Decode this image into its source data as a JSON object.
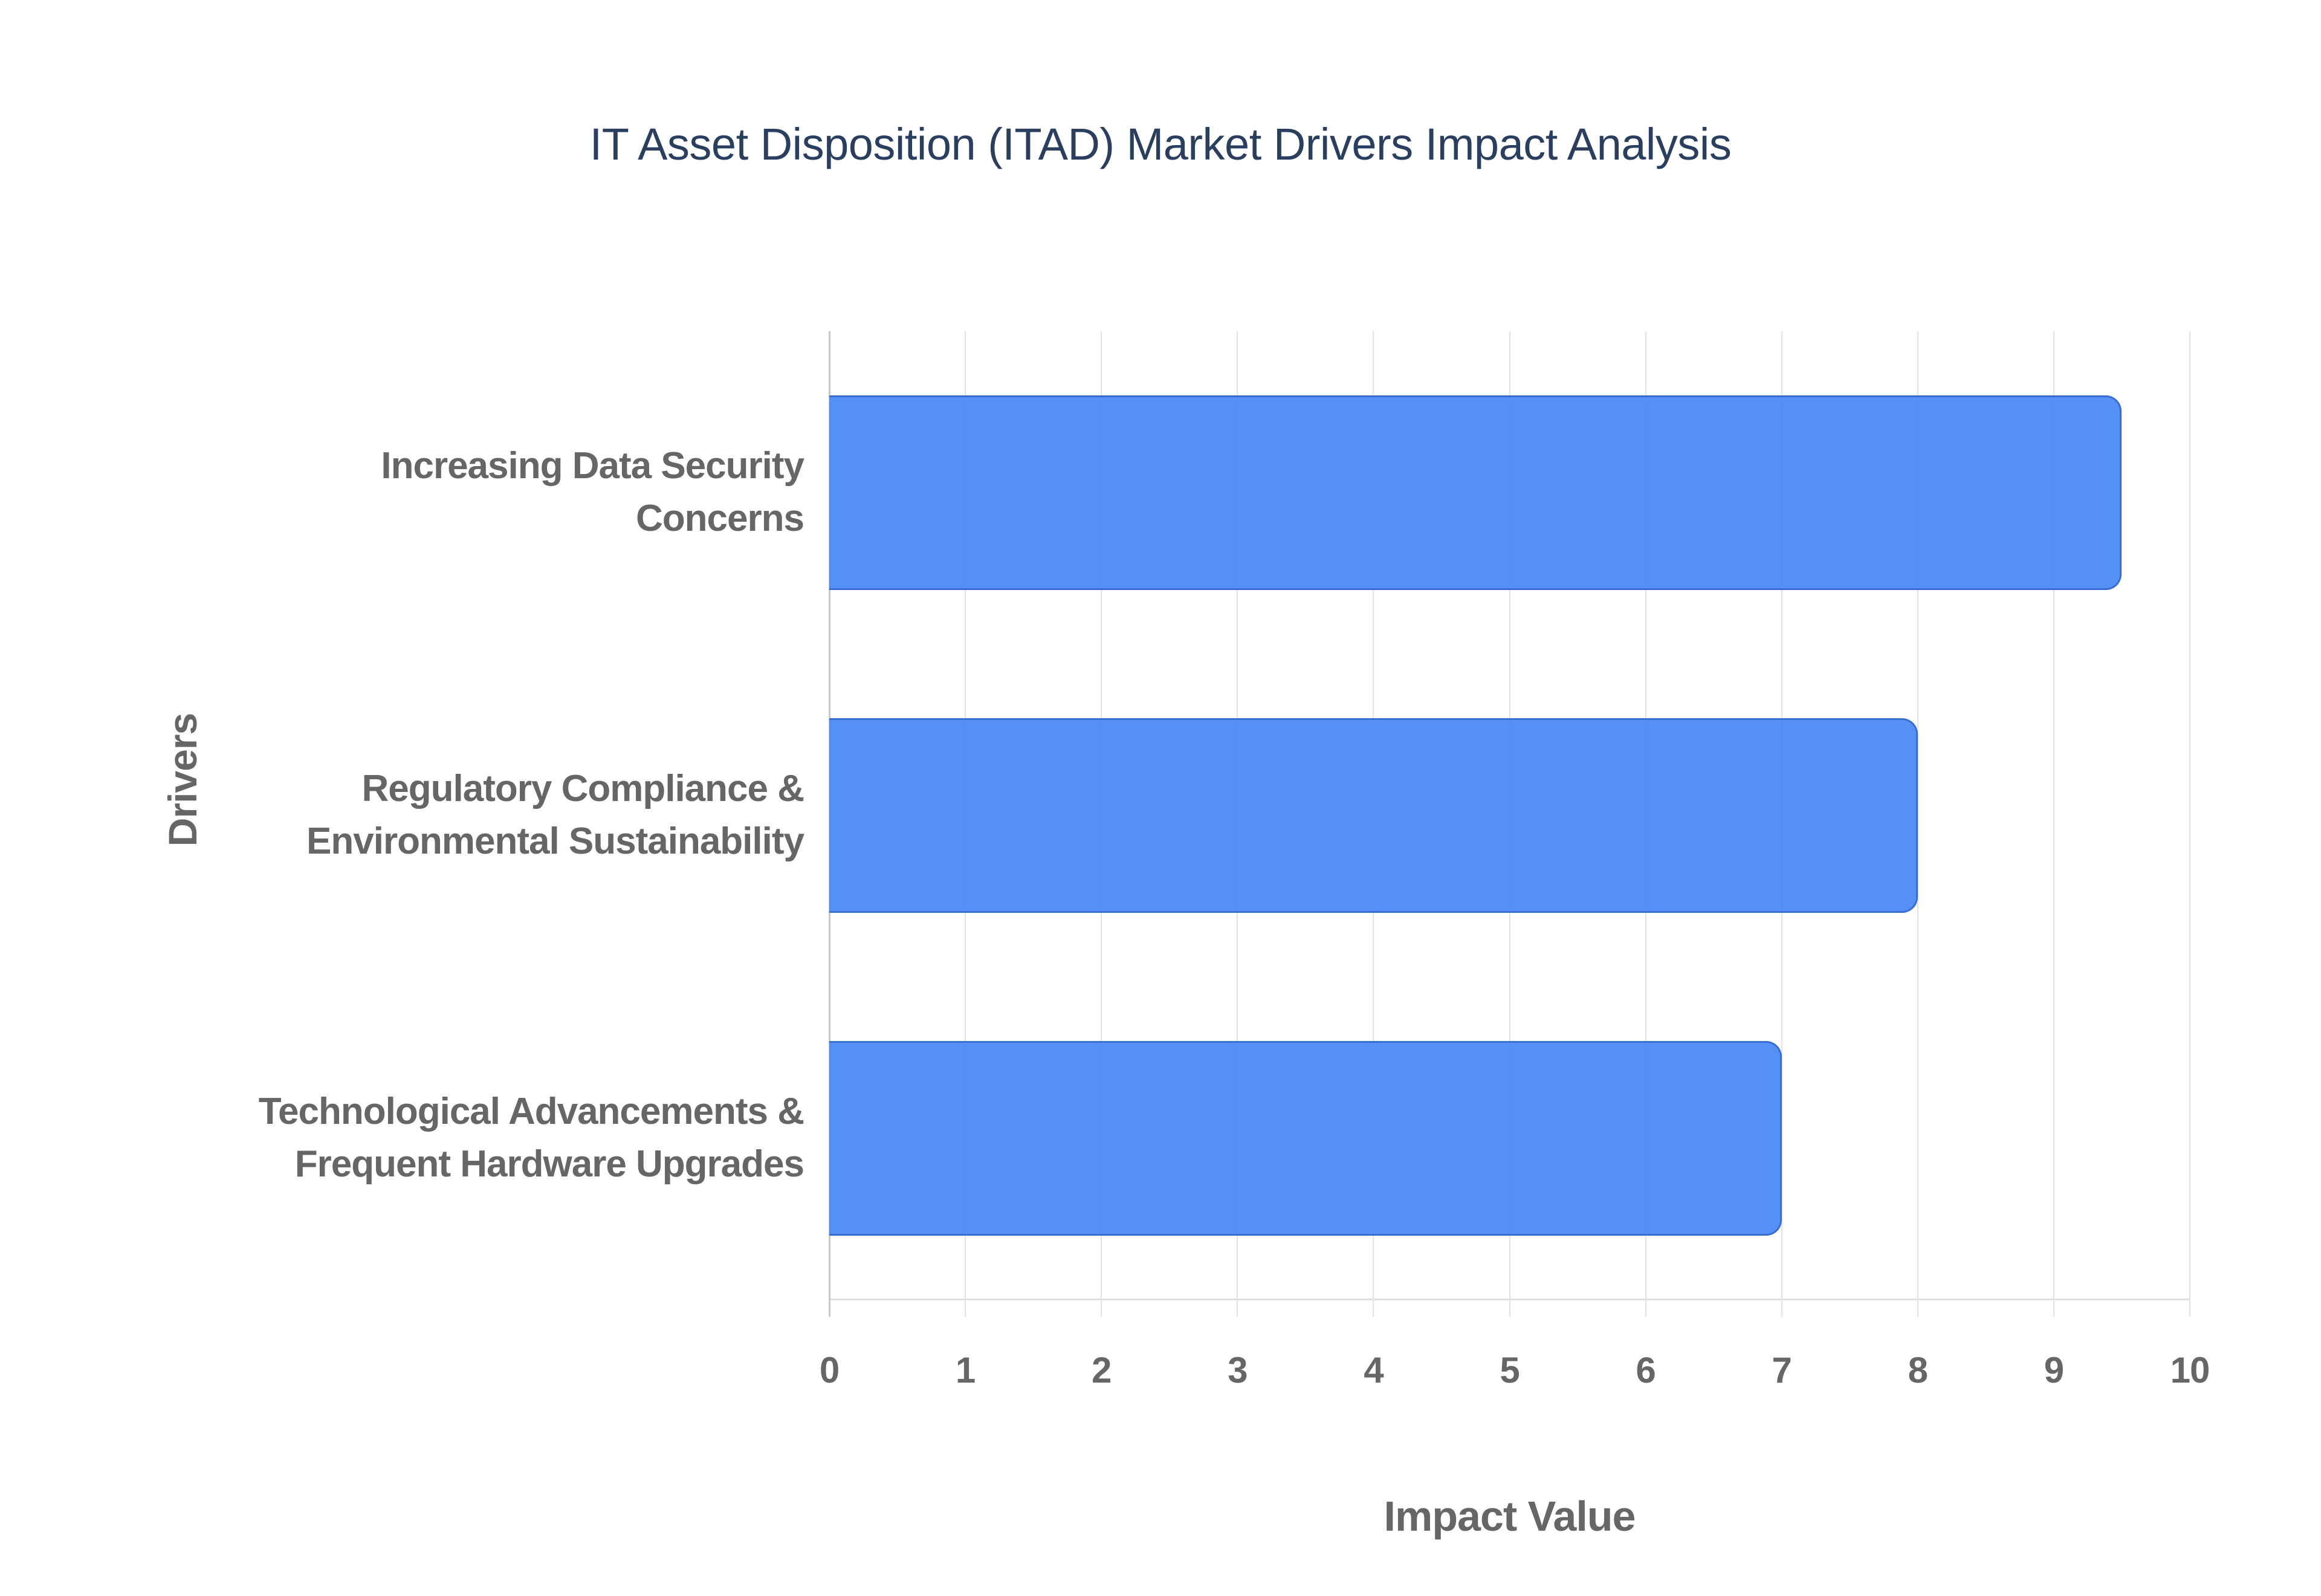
{
  "title": "IT Asset Disposition (ITAD) Market Drivers Impact Analysis",
  "chart_data": {
    "type": "bar",
    "orientation": "horizontal",
    "title": "IT Asset Disposition (ITAD) Market Drivers Impact Analysis",
    "xlabel": "Impact Value",
    "ylabel": "Drivers",
    "xlim": [
      0,
      10
    ],
    "xticks": [
      0,
      1,
      2,
      3,
      4,
      5,
      6,
      7,
      8,
      9,
      10
    ],
    "grid": true,
    "legend": false,
    "categories": [
      "Increasing Data Security Concerns",
      "Regulatory Compliance & Environmental Sustainability",
      "Technological Advancements & Frequent Hardware Upgrades"
    ],
    "category_lines": [
      [
        "Increasing Data Security",
        "Concerns"
      ],
      [
        "Regulatory Compliance &",
        "Environmental Sustainability"
      ],
      [
        "Technological Advancements &",
        "Frequent Hardware Upgrades"
      ]
    ],
    "values": [
      9.5,
      8,
      7
    ],
    "colors": {
      "bar_fill": "rgba(66,133,244,0.9)",
      "bar_border": "#3b6cd1",
      "title_text": "#2a3f5f",
      "axis_text": "#666666",
      "gridline": "#e3e3e3",
      "zero_line": "#c9c9c9",
      "axis_line": "#e0e0e0",
      "background": "#ffffff"
    }
  }
}
